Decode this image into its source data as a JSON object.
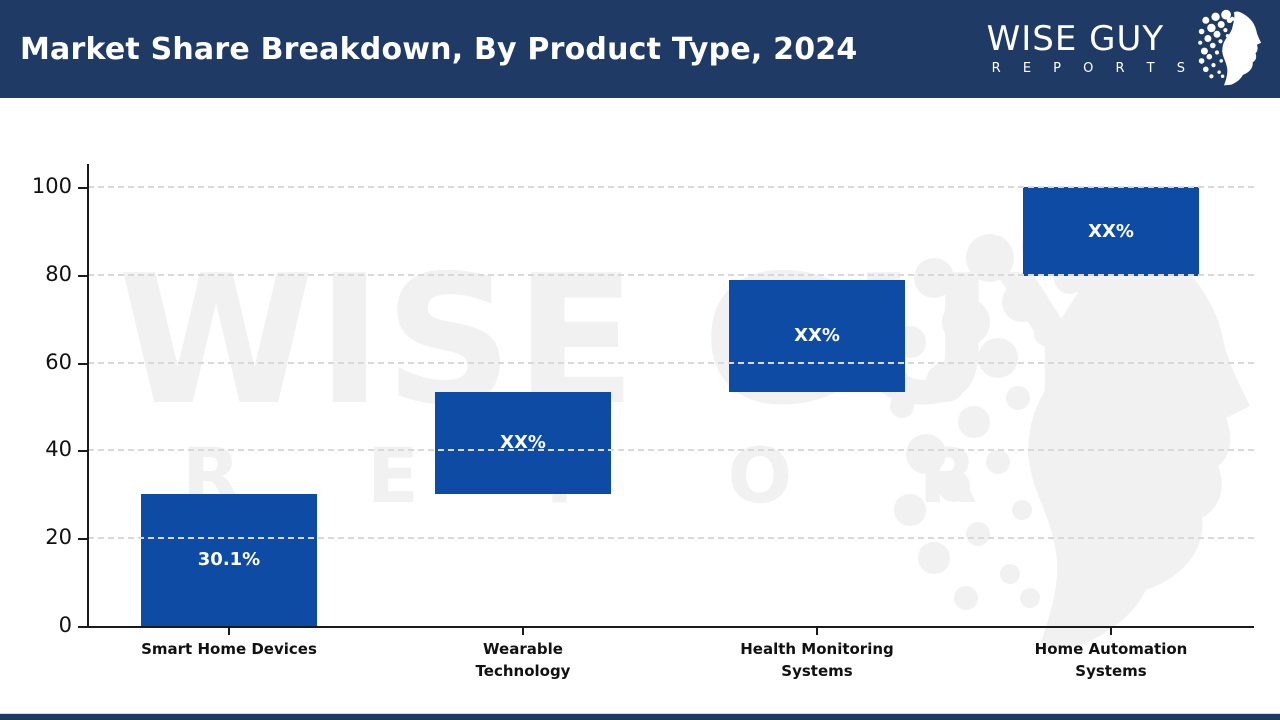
{
  "header": {
    "title": "Market Share Breakdown, By Product Type, 2024",
    "brand": {
      "wordmark": "WISE GUY",
      "wordmark_sub": "R E P O R T S"
    }
  },
  "watermark": {
    "line1": "WISE GUY",
    "line2": "R E P O R T S"
  },
  "colors": {
    "header_bg": "#203a66",
    "footer_bg": "#203a66",
    "bar": "#0d4ba5",
    "bar_label": "#ffffff",
    "grid": "#d9d9d9",
    "axis": "#1a1a1a",
    "tick_label": "#111111",
    "watermark": "#f1f1f1",
    "title_text": "#ffffff"
  },
  "chart_data": {
    "type": "bar",
    "subtype": "waterfall",
    "title": "Market Share Breakdown, By Product Type, 2024",
    "categories": [
      "Smart Home Devices",
      "Wearable\nTechnology",
      "Health Monitoring\nSystems",
      "Home Automation\nSystems"
    ],
    "segments": [
      {
        "category": "Smart Home Devices",
        "start": 0,
        "end": 30.1,
        "label": "30.1%"
      },
      {
        "category": "Wearable Technology",
        "start": 30.1,
        "end": 53.4,
        "label": "XX%"
      },
      {
        "category": "Health Monitoring Systems",
        "start": 53.4,
        "end": 78.9,
        "label": "XX%"
      },
      {
        "category": "Home Automation Systems",
        "start": 79.8,
        "end": 100,
        "label": "XX%"
      }
    ],
    "yticks": [
      0,
      20,
      40,
      60,
      80,
      100
    ],
    "ylim": [
      0,
      100
    ],
    "xlabel": "",
    "ylabel": "",
    "grid": "horizontal-dashed",
    "legend": null
  }
}
